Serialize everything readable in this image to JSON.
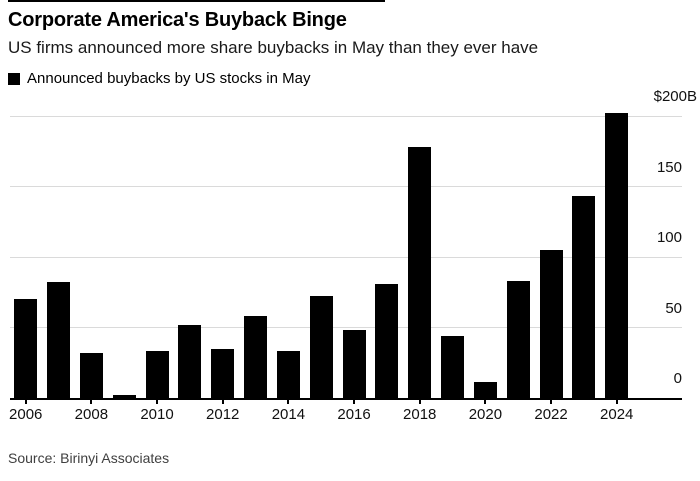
{
  "chart_data": {
    "type": "bar",
    "title": "Corporate America's Buyback Binge",
    "subtitle": "US firms announced more share buybacks in May than they ever have",
    "legend": "Announced buybacks by US stocks in May",
    "source": "Source: Birinyi Associates",
    "unit": "billions of US dollars",
    "categories": [
      2006,
      2007,
      2008,
      2009,
      2010,
      2011,
      2012,
      2013,
      2014,
      2015,
      2016,
      2017,
      2018,
      2019,
      2020,
      2021,
      2022,
      2023,
      2024
    ],
    "values": [
      70,
      82,
      32,
      2,
      33,
      52,
      35,
      58,
      33,
      72,
      48,
      81,
      178,
      44,
      11,
      83,
      105,
      143,
      202
    ],
    "x_tick_labels": [
      "2006",
      "2008",
      "2010",
      "2012",
      "2014",
      "2016",
      "2018",
      "2020",
      "2022",
      "2024"
    ],
    "y_ticks": [
      {
        "label": "$200B",
        "value": 200
      },
      {
        "label": "150",
        "value": 150
      },
      {
        "label": "100",
        "value": 100
      },
      {
        "label": "50",
        "value": 50
      },
      {
        "label": "0",
        "value": 0
      }
    ],
    "ylim": [
      0,
      210
    ],
    "grid": "horizontal",
    "legend_position": "top-left",
    "colors": {
      "bar": "#000000",
      "gridline": "#dadada",
      "axis": "#000000",
      "title": "#000000",
      "subtitle": "#1a1a1a",
      "source": "#3f3f3f",
      "background": "#ffffff"
    }
  }
}
